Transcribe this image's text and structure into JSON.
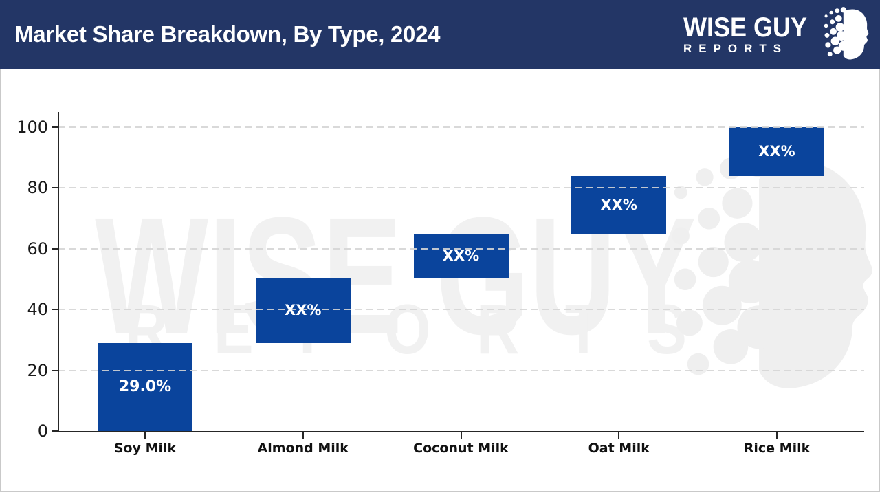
{
  "header": {
    "title": "Market Share Breakdown, By Type, 2024",
    "logo": {
      "line1": "WISE GUY",
      "line2": "REPORTS",
      "head_icon": "dotted-face-profile"
    }
  },
  "watermark": {
    "line1": "WISE GUY",
    "line2": "REPORTS",
    "head_icon": "dotted-face-profile"
  },
  "colors": {
    "header_bg": "#233666",
    "bar": "#0a449c",
    "bar_label": "#ffffff",
    "axis": "#262626",
    "gridline": "#d5d5d5",
    "watermark": "#f1f1f1",
    "frame_line": "#c9c9c9"
  },
  "chart_data": {
    "type": "bar",
    "subtype": "floating-waterfall",
    "title": "Market Share Breakdown, By Type, 2024",
    "categories": [
      "Soy Milk",
      "Almond Milk",
      "Coconut Milk",
      "Oat Milk",
      "Rice Milk"
    ],
    "segments": [
      {
        "category": "Soy Milk",
        "label": "29.0%",
        "start": 0,
        "end": 29
      },
      {
        "category": "Almond Milk",
        "label": "XX%",
        "start": 29,
        "end": 50.5
      },
      {
        "category": "Coconut Milk",
        "label": "XX%",
        "start": 50.5,
        "end": 65
      },
      {
        "category": "Oat Milk",
        "label": "XX%",
        "start": 65,
        "end": 84
      },
      {
        "category": "Rice Milk",
        "label": "XX%",
        "start": 84,
        "end": 100
      }
    ],
    "xlabel": "",
    "ylabel": "",
    "ylim": [
      0,
      105
    ],
    "yticks": [
      0,
      20,
      40,
      60,
      80,
      100
    ],
    "grid": {
      "visible": true,
      "style": "dashed",
      "axis": "y",
      "drawn_over_bars": true
    },
    "legend": {
      "visible": false
    }
  }
}
